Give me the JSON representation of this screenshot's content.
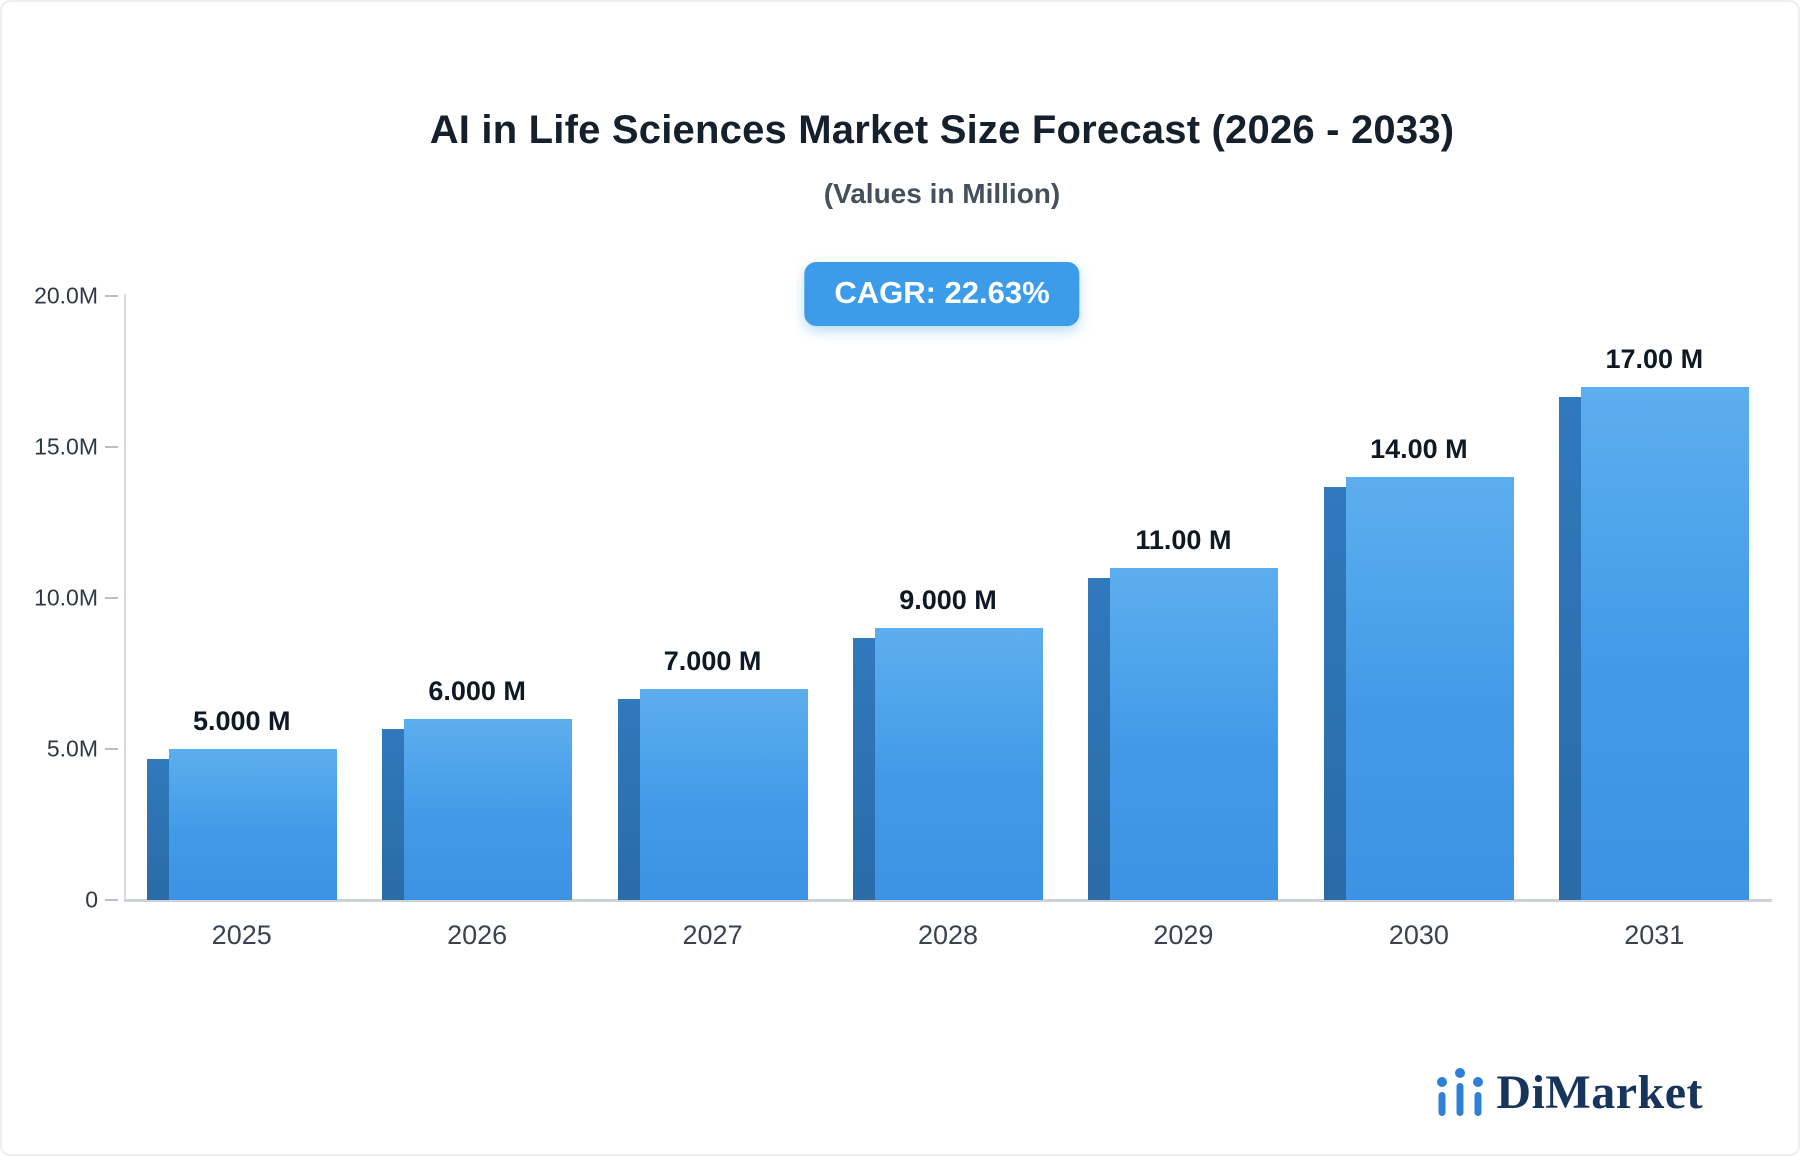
{
  "chart": {
    "title": "AI in Life Sciences Market Size Forecast (2026 - 2033)",
    "subtitle": "(Values in Million)",
    "cagr_label": "CAGR: 22.63%"
  },
  "logo": {
    "text": "DiMarket"
  },
  "chart_data": {
    "type": "bar",
    "title": "AI in Life Sciences Market Size Forecast (2026 - 2033)",
    "subtitle": "(Values in Million)",
    "cagr": "22.63%",
    "categories": [
      "2025",
      "2026",
      "2027",
      "2028",
      "2029",
      "2030",
      "2031"
    ],
    "values": [
      5,
      6,
      7,
      9,
      11,
      14,
      17
    ],
    "value_labels": [
      "5.000 M",
      "6.000 M",
      "7.000 M",
      "9.000 M",
      "11.00 M",
      "14.00 M",
      "17.00 M"
    ],
    "unit": "Million",
    "xlabel": "",
    "ylabel": "",
    "ylim": [
      0,
      20
    ],
    "yticks": [
      0,
      5,
      10,
      15,
      20
    ],
    "ytick_labels": [
      "0",
      "5.0M",
      "10.0M",
      "15.0M",
      "20.0M"
    ],
    "grid": false,
    "legend": false,
    "bar_color": "#42a0e8",
    "bar_side_color": "#2d6fae",
    "badge_color": "#3d9ce9"
  }
}
